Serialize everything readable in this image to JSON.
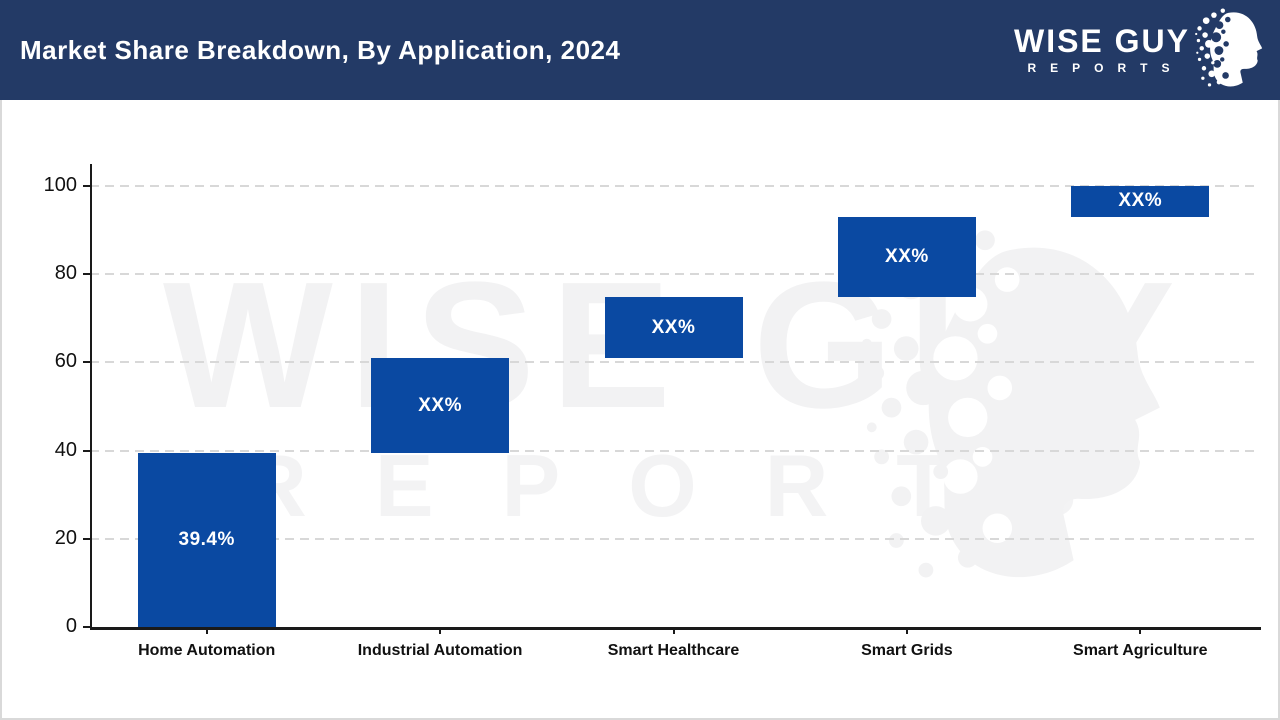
{
  "header": {
    "title": "Market Share Breakdown, By Application, 2024",
    "logo": {
      "line1": "WISE GUY",
      "line2": "REPORTS",
      "icon": "dotted-head-profile-icon"
    }
  },
  "watermark": {
    "line1": "WISE GUY",
    "line2": "REPORTS",
    "icon": "dotted-head-profile-icon"
  },
  "colors": {
    "header_bg": "#233a66",
    "bar_fill": "#0a49a2",
    "bar_label_text": "#ffffff",
    "gridline": "#d8d8d8",
    "axis": "#1a1a1a",
    "watermark": "#f2f2f3",
    "frame_border": "#d9d9d9"
  },
  "chart_data": {
    "type": "bar",
    "subtype": "waterfall",
    "title": "Market Share Breakdown, By Application, 2024",
    "categories": [
      "Home Automation",
      "Industrial Automation",
      "Smart Healthcare",
      "Smart Grids",
      "Smart Agriculture"
    ],
    "bars": [
      {
        "category": "Home Automation",
        "start": 0,
        "end": 39.4,
        "label": "39.4%"
      },
      {
        "category": "Industrial Automation",
        "start": 39.4,
        "end": 61,
        "label": "XX%"
      },
      {
        "category": "Smart Healthcare",
        "start": 61,
        "end": 74.8,
        "label": "XX%"
      },
      {
        "category": "Smart Grids",
        "start": 74.8,
        "end": 93,
        "label": "XX%"
      },
      {
        "category": "Smart Agriculture",
        "start": 93,
        "end": 100,
        "label": "XX%"
      }
    ],
    "xlabel": "",
    "ylabel": "",
    "ylim": [
      0,
      100
    ],
    "yticks": [
      0,
      20,
      40,
      60,
      80,
      100
    ],
    "grid": "horizontal-dashed",
    "legend": "none"
  }
}
